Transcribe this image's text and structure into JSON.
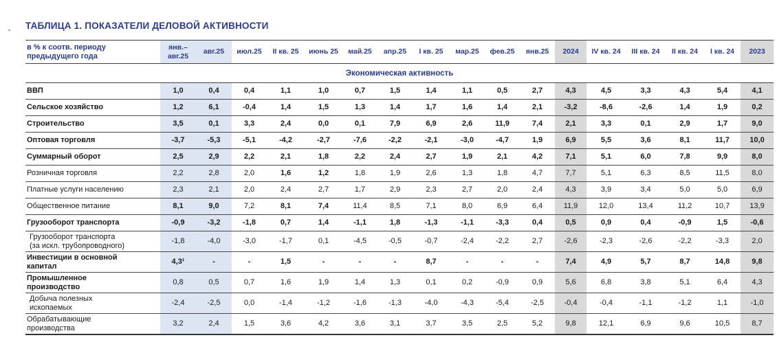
{
  "page": {
    "title": "ТАБЛИЦА 1. ПОКАЗАТЕЛИ ДЕЛОВОЙ АКТИВНОСТИ"
  },
  "table": {
    "corner_label": "в % к соотв. периоду\nпредыдущего года",
    "section_header": "Экономическая активность",
    "colors": {
      "accent_blue_text": "#2b3b94",
      "highlight_blue_column": "#dce5f1",
      "highlight_gray_column": "#d9d9d9"
    },
    "columns": [
      {
        "label": "янв.–\nавг.25",
        "shade": "blue"
      },
      {
        "label": "авг.25",
        "shade": "blue"
      },
      {
        "label": "июл.25",
        "shade": null
      },
      {
        "label": "II кв. 25",
        "shade": null
      },
      {
        "label": "июнь 25",
        "shade": null
      },
      {
        "label": "май.25",
        "shade": null
      },
      {
        "label": "апр.25",
        "shade": null
      },
      {
        "label": "I кв. 25",
        "shade": null
      },
      {
        "label": "мар.25",
        "shade": null
      },
      {
        "label": "фев.25",
        "shade": null
      },
      {
        "label": "янв.25",
        "shade": null
      },
      {
        "label": "2024",
        "shade": "gray"
      },
      {
        "label": "IV кв. 24",
        "shade": null
      },
      {
        "label": "III кв. 24",
        "shade": null
      },
      {
        "label": "II кв. 24",
        "shade": null
      },
      {
        "label": "I кв. 24",
        "shade": null
      },
      {
        "label": "2023",
        "shade": "gray"
      }
    ],
    "rows": [
      {
        "label": "ВВП",
        "bold": "all",
        "lines": 1,
        "indent": false,
        "bold_cells": [],
        "values": [
          "1,0",
          "0,4",
          "0,4",
          "1,1",
          "1,0",
          "0,7",
          "1,5",
          "1,4",
          "1,1",
          "0,5",
          "2,7",
          "4,3",
          "4,5",
          "3,3",
          "4,3",
          "5,4",
          "4,1"
        ]
      },
      {
        "label": "Сельское хозяйство",
        "bold": "all",
        "lines": 1,
        "indent": false,
        "bold_cells": [],
        "values": [
          "1,2",
          "6,1",
          "-0,4",
          "1,4",
          "1,5",
          "1,3",
          "1,4",
          "1,7",
          "1,6",
          "1,4",
          "2,1",
          "-3,2",
          "-8,6",
          "-2,6",
          "1,4",
          "1,9",
          "0,2"
        ]
      },
      {
        "label": "Строительство",
        "bold": "all",
        "lines": 1,
        "indent": false,
        "bold_cells": [],
        "values": [
          "3,5",
          "0,1",
          "3,3",
          "2,4",
          "0,0",
          "0,1",
          "7,9",
          "6,9",
          "2,6",
          "11,9",
          "7,4",
          "2,1",
          "3,3",
          "0,1",
          "2,9",
          "1,7",
          "9,0"
        ]
      },
      {
        "label": "Оптовая торговля",
        "bold": "all",
        "lines": 1,
        "indent": false,
        "bold_cells": [],
        "values": [
          "-3,7",
          "-5,3",
          "-5,1",
          "-4,2",
          "-2,7",
          "-7,6",
          "-2,2",
          "-2,1",
          "-3,0",
          "-4,7",
          "1,9",
          "6,9",
          "5,5",
          "3,6",
          "8,1",
          "11,7",
          "10,0"
        ]
      },
      {
        "label": "Суммарный оборот",
        "bold": "all",
        "lines": 1,
        "indent": false,
        "bold_cells": [],
        "values": [
          "2,5",
          "2,9",
          "2,2",
          "2,1",
          "1,8",
          "2,2",
          "2,4",
          "2,7",
          "1,9",
          "2,1",
          "4,2",
          "7,1",
          "5,1",
          "6,0",
          "7,8",
          "9,9",
          "8,0"
        ]
      },
      {
        "label": "Розничная торговля",
        "bold": "none",
        "lines": 1,
        "indent": false,
        "bold_cells": [
          3,
          4
        ],
        "values": [
          "2,2",
          "2,8",
          "2,0",
          "1,6",
          "1,2",
          "1,8",
          "1,9",
          "2,6",
          "1,3",
          "1,8",
          "4,7",
          "7,7",
          "5,1",
          "6,3",
          "8,5",
          "11,5",
          "8,0"
        ]
      },
      {
        "label": "Платные услуги населению",
        "bold": "none",
        "lines": 1,
        "indent": false,
        "bold_cells": [],
        "values": [
          "2,3",
          "2,1",
          "2,0",
          "2,4",
          "2,7",
          "1,7",
          "2,9",
          "2,3",
          "2,7",
          "2,0",
          "2,4",
          "4,3",
          "3,9",
          "3,4",
          "5,0",
          "5,0",
          "6,9"
        ]
      },
      {
        "label": "Общественное питание",
        "bold": "none",
        "lines": 1,
        "indent": false,
        "bold_cells": [
          0,
          1,
          3,
          4
        ],
        "values": [
          "8,1",
          "9,0",
          "7,2",
          "8,1",
          "7,4",
          "11,4",
          "8,5",
          "7,1",
          "8,0",
          "6,9",
          "6,4",
          "11,9",
          "12,0",
          "13,4",
          "11,2",
          "10,7",
          "13,9"
        ]
      },
      {
        "label": "Грузооборот транспорта",
        "bold": "all",
        "lines": 1,
        "indent": false,
        "bold_cells": [],
        "values": [
          "-0,9",
          "-3,2",
          "-1,8",
          "0,7",
          "1,4",
          "-1,1",
          "1,8",
          "-1,3",
          "-1,1",
          "-3,3",
          "0,4",
          "0,5",
          "0,9",
          "0,4",
          "-0,9",
          "1,5",
          "-0,6"
        ]
      },
      {
        "label": "Грузооборот транспорта\n(за искл. трубопроводного)",
        "bold": "none",
        "lines": 2,
        "indent": true,
        "bold_cells": [],
        "values": [
          "-1,8",
          "-4,0",
          "-3,0",
          "-1,7",
          "0,1",
          "-4,5",
          "-0,5",
          "-0,7",
          "-2,4",
          "-2,2",
          "2,7",
          "-2,6",
          "-2,3",
          "-2,6",
          "-2,2",
          "-3,3",
          "2,0"
        ]
      },
      {
        "label": "Инвестиции в основной\nкапитал",
        "bold": "all",
        "lines": 2,
        "indent": false,
        "bold_cells": [],
        "values": [
          "4,3¹",
          "-",
          "-",
          "1,5",
          "-",
          "-",
          "-",
          "8,7",
          "-",
          "-",
          "-",
          "7,4",
          "4,9",
          "5,7",
          "8,7",
          "14,8",
          "9,8"
        ]
      },
      {
        "label": "Промышленное\nпроизводство",
        "bold": "label",
        "lines": 2,
        "indent": false,
        "bold_cells": [],
        "values": [
          "0,8",
          "0,5",
          "0,7",
          "1,6",
          "1,9",
          "1,4",
          "1,3",
          "0,1",
          "0,2",
          "-0,9",
          "0,9",
          "5,6",
          "6,8",
          "3,8",
          "5,1",
          "6,4",
          "4,3"
        ]
      },
      {
        "label": "Добыча полезных\nископаемых",
        "bold": "none",
        "lines": 2,
        "indent": true,
        "bold_cells": [],
        "values": [
          "-2,4",
          "-2,5",
          "0,0",
          "-1,4",
          "-1,2",
          "-1,6",
          "-1,3",
          "-4,0",
          "-4,3",
          "-5,4",
          "-2,5",
          "-0,4",
          "-0,4",
          "-1,1",
          "-1,2",
          "1,1",
          "-1,0"
        ]
      },
      {
        "label": "Обрабатывающие\nпроизводства",
        "bold": "none",
        "lines": 2,
        "indent": false,
        "bold_cells": [],
        "values": [
          "3,2",
          "2,4",
          "1,5",
          "3,6",
          "4,2",
          "3,6",
          "3,1",
          "3,7",
          "3,5",
          "2,5",
          "5,2",
          "9,8",
          "12,1",
          "6,9",
          "9,6",
          "10,5",
          "8,7"
        ]
      }
    ]
  }
}
